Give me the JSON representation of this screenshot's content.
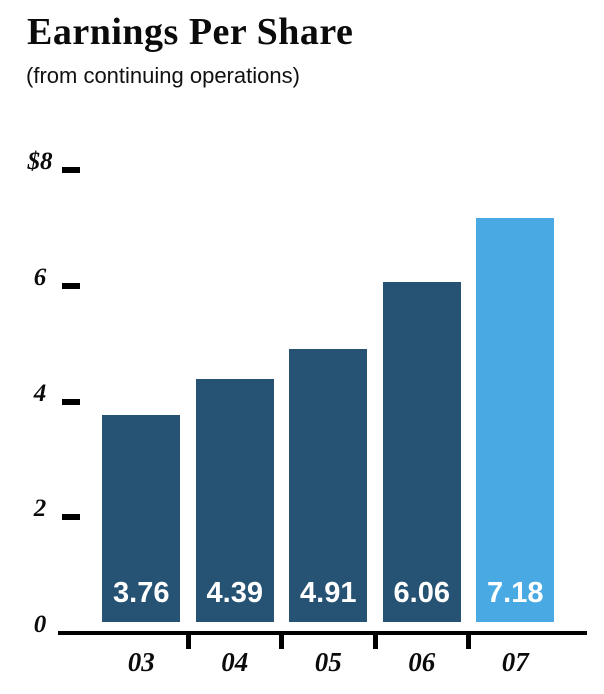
{
  "chart_data": {
    "type": "bar",
    "title": "Earnings Per Share",
    "subtitle": "(from continuing operations)",
    "categories": [
      "03",
      "04",
      "05",
      "06",
      "07"
    ],
    "values": [
      3.76,
      4.39,
      4.91,
      6.06,
      7.18
    ],
    "bar_labels": [
      "3.76",
      "4.39",
      "4.91",
      "6.06",
      "7.18"
    ],
    "highlight_index": 4,
    "y_ticks": [
      {
        "value": 0,
        "label": "0"
      },
      {
        "value": 2,
        "label": "2"
      },
      {
        "value": 4,
        "label": "4"
      },
      {
        "value": 6,
        "label": "6"
      },
      {
        "value": 8,
        "label": "$8"
      }
    ],
    "ylim": [
      0,
      8
    ],
    "xlabel": "",
    "ylabel": "",
    "grid": false,
    "legend": false,
    "colors": {
      "bar": "#265273",
      "highlight_bar": "#49AAE3",
      "bar_label_text": "#FFFFFF",
      "axis": "#000000",
      "title_text": "#0B0B0B"
    }
  }
}
